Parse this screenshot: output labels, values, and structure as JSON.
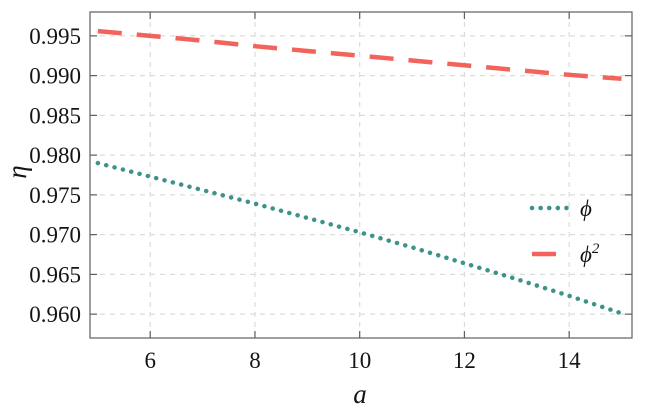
{
  "chart_data": {
    "type": "line",
    "title": "",
    "xlabel": "a",
    "ylabel": "η",
    "xlim": [
      4.85,
      15.2
    ],
    "ylim": [
      0.957,
      0.998
    ],
    "xticks": [
      6,
      8,
      10,
      12,
      14
    ],
    "xtick_labels": [
      "6",
      "8",
      "10",
      "12",
      "14"
    ],
    "yticks": [
      0.96,
      0.965,
      0.97,
      0.975,
      0.98,
      0.985,
      0.99,
      0.995
    ],
    "ytick_labels": [
      "0.960",
      "0.965",
      "0.970",
      "0.975",
      "0.980",
      "0.985",
      "0.990",
      "0.995"
    ],
    "grid": "dashed",
    "legend_position": "right-center",
    "series": [
      {
        "name": "ϕ",
        "exponent": "",
        "color": "#3d938c",
        "style": "dotted",
        "width": 4.5,
        "dash": "0.1 8.5",
        "linecap": "round",
        "x": [
          5,
          6,
          7,
          8,
          9,
          10,
          11,
          12,
          13,
          14,
          15
        ],
        "y": [
          0.979,
          0.9773,
          0.9756,
          0.9739,
          0.9721,
          0.9703,
          0.9684,
          0.9664,
          0.9644,
          0.9623,
          0.9601
        ]
      },
      {
        "name": "ϕ",
        "exponent": "2",
        "color": "#f2635c",
        "style": "dashed",
        "width": 4.5,
        "dash": "24 15",
        "linecap": "butt",
        "x": [
          5,
          6,
          7,
          8,
          9,
          10,
          11,
          12,
          13,
          14,
          15
        ],
        "y": [
          0.9956,
          0.995,
          0.9944,
          0.9937,
          0.9931,
          0.9925,
          0.9919,
          0.9913,
          0.9907,
          0.9901,
          0.9896
        ]
      }
    ]
  }
}
